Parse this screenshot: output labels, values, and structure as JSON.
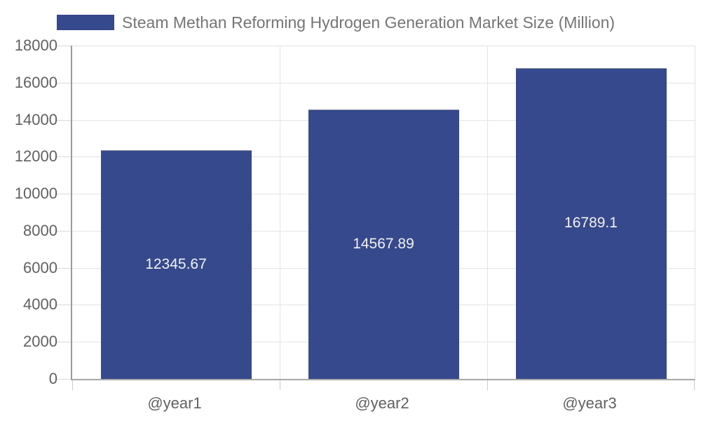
{
  "chart_data": {
    "type": "bar",
    "title": "Steam Methan Reforming Hydrogen Generation Market Size (Million)",
    "categories": [
      "@year1",
      "@year2",
      "@year3"
    ],
    "values": [
      12345.67,
      14567.89,
      16789.1
    ],
    "value_labels": [
      "12345.67",
      "14567.89",
      "16789.1"
    ],
    "series_name": "Steam Methan Reforming Hydrogen Generation Market Size (Million)",
    "xlabel": "",
    "ylabel": "",
    "ylim": [
      0,
      18000
    ],
    "yticks": [
      0,
      2000,
      4000,
      6000,
      8000,
      10000,
      12000,
      14000,
      16000,
      18000
    ],
    "grid": true,
    "legend_position": "top-left",
    "colors": {
      "bar": "#36498c",
      "value_label": "#f2f2f2",
      "grid": "#e4e4e4",
      "axis": "#9a9a9a",
      "tick_label": "#616161",
      "title": "#757575",
      "background": "#ffffff"
    }
  }
}
